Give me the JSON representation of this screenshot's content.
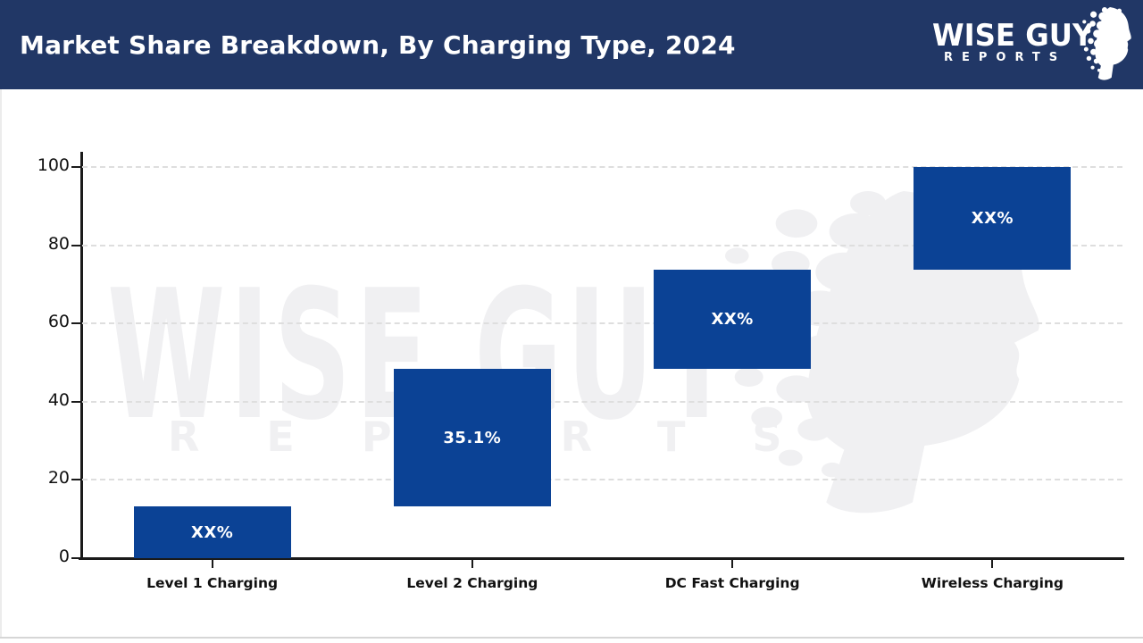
{
  "header": {
    "title": "Market Share Breakdown, By Charging Type, 2024",
    "bg_color": "#213766",
    "logo": {
      "wordmark": "WISE GUY",
      "subtext": "REPORTS"
    }
  },
  "watermark": {
    "wordmark": "WISE GUY",
    "subtext": "REPORTS"
  },
  "chart_data": {
    "type": "bar",
    "subtype": "waterfall",
    "title": "Market Share Breakdown, By Charging Type, 2024",
    "categories": [
      "Level 1 Charging",
      "Level 2 Charging",
      "DC Fast Charging",
      "Wireless Charging"
    ],
    "bars": [
      {
        "category": "Level 1 Charging",
        "start": 0,
        "end": 13.2,
        "value_label": "XX%"
      },
      {
        "category": "Level 2 Charging",
        "start": 13.2,
        "end": 48.3,
        "value_label": "35.1%"
      },
      {
        "category": "DC Fast Charging",
        "start": 48.3,
        "end": 73.7,
        "value_label": "XX%"
      },
      {
        "category": "Wireless Charging",
        "start": 73.7,
        "end": 100,
        "value_label": "XX%"
      }
    ],
    "xlabel": "",
    "ylabel": "",
    "ylim": [
      0,
      100
    ],
    "yticks": [
      0,
      20,
      40,
      60,
      80,
      100
    ],
    "bar_color": "#0B4295",
    "grid": "dashed-horizontal",
    "legend": "none"
  }
}
